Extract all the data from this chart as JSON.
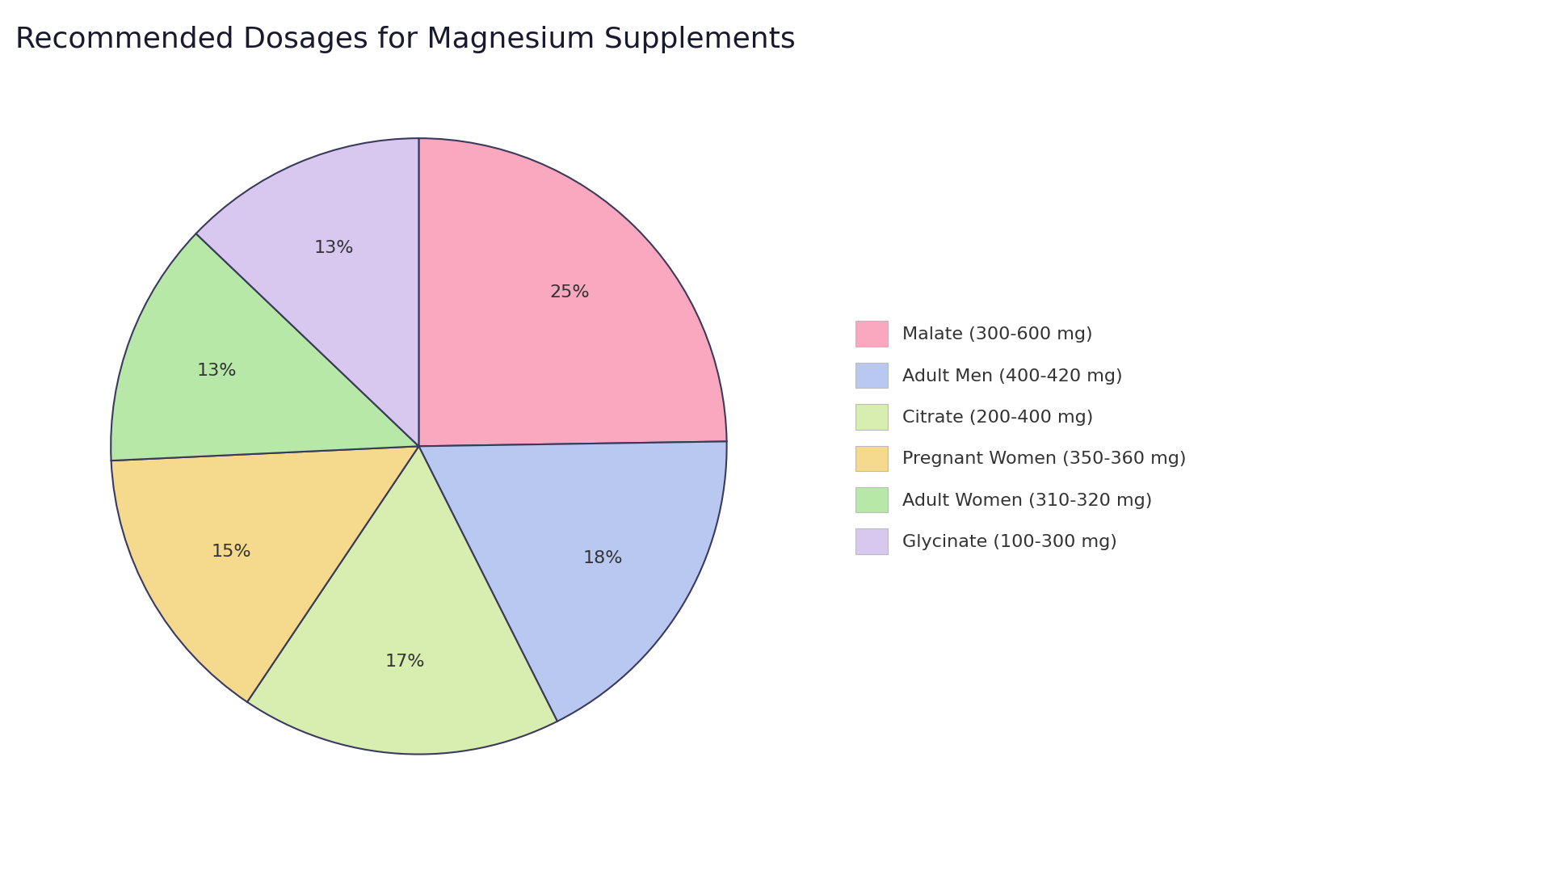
{
  "title": "Recommended Dosages for Magnesium Supplements",
  "title_fontsize": 26,
  "labels": [
    "Malate (300-600 mg)",
    "Adult Men (400-420 mg)",
    "Citrate (200-400 mg)",
    "Pregnant Women (350-360 mg)",
    "Adult Women (310-320 mg)",
    "Glycinate (100-300 mg)"
  ],
  "sizes": [
    25,
    18,
    17,
    15,
    13,
    13
  ],
  "colors": [
    "#F9A8C0",
    "#B8C8F0",
    "#D8EDB0",
    "#F5D98C",
    "#B8E8A8",
    "#D8C8F0"
  ],
  "edge_color": "#3A3A5C",
  "edge_width": 1.5,
  "pct_fontsize": 16,
  "legend_fontsize": 16,
  "background_color": "#FFFFFF",
  "startangle": 90,
  "pct_distance": 0.7,
  "counterclock": false
}
